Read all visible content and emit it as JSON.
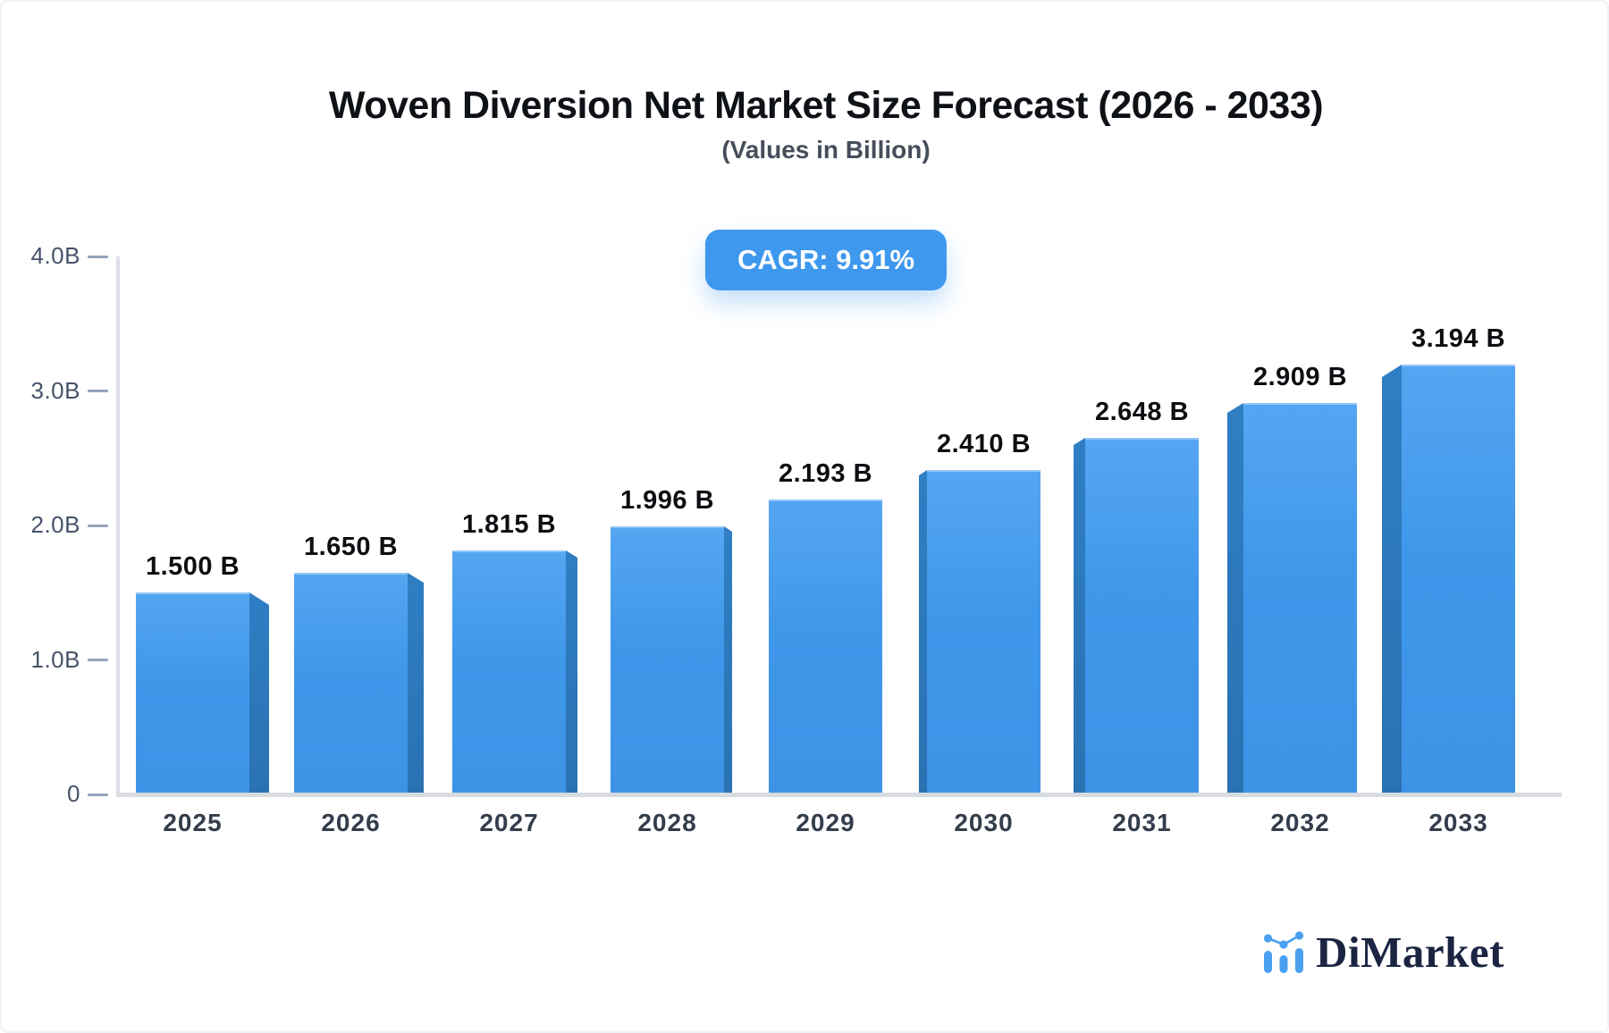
{
  "header": {
    "title": "Woven Diversion Net Market Size Forecast (2026 - 2033)",
    "subtitle": "(Values in Billion)",
    "cagr_label": "CAGR: 9.91%"
  },
  "chart_data": {
    "type": "bar",
    "title": "Woven Diversion Net Market Size Forecast (2026 - 2033)",
    "subtitle": "(Values in Billion)",
    "annotation": "CAGR: 9.91%",
    "categories": [
      "2025",
      "2026",
      "2027",
      "2028",
      "2029",
      "2030",
      "2031",
      "2032",
      "2033"
    ],
    "values": [
      1.5,
      1.65,
      1.815,
      1.996,
      2.193,
      2.41,
      2.648,
      2.909,
      3.194
    ],
    "value_labels": [
      "1.500 B",
      "1.650 B",
      "1.815 B",
      "1.996 B",
      "2.193 B",
      "2.410 B",
      "2.648 B",
      "2.909 B",
      "3.194 B"
    ],
    "xlabel": "",
    "ylabel": "",
    "ylim": [
      0,
      4.0
    ],
    "yticks": [
      {
        "value": 0,
        "label": "0"
      },
      {
        "value": 1.0,
        "label": "1.0B"
      },
      {
        "value": 2.0,
        "label": "2.0B"
      },
      {
        "value": 3.0,
        "label": "3.0B"
      },
      {
        "value": 4.0,
        "label": "4.0B"
      }
    ],
    "grid": false,
    "legend": "none",
    "bar_style": "3d-perspective-center-vanishing"
  },
  "colors": {
    "bar_front": "#3f97ea",
    "bar_front_light": "#55a6f1",
    "bar_side": "#2c77ba",
    "badge_bg": "#3e98ee",
    "badge_text": "#ffffff",
    "axis_line": "#dcdfe5",
    "baseline": "#d8dce1",
    "tick_mark": "#94a3b8",
    "tick_label": "#46526a",
    "year_label": "#333d4b",
    "value_label": "#0c0e12",
    "title": "#0e1116",
    "subtitle": "#454d5b",
    "logo_text": "#1b2542",
    "logo_icon": "#4aa0f0"
  },
  "footer": {
    "logo_text": "DiMarket"
  }
}
